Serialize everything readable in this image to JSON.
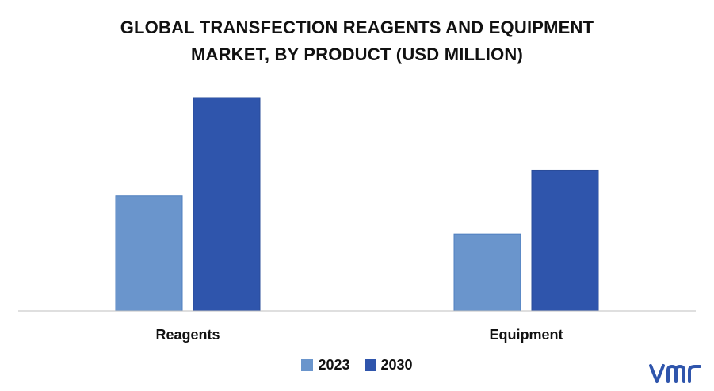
{
  "title_lines": [
    "GLOBAL TRANSFECTION REAGENTS AND EQUIPMENT",
    "MARKET, BY PRODUCT (USD MILLION)"
  ],
  "colors": {
    "series_2023": "#6a95cc",
    "series_2030": "#2f55ac",
    "axis": "#bfbfbf"
  },
  "chart_data": {
    "type": "bar",
    "title": "GLOBAL TRANSFECTION REAGENTS AND EQUIPMENT MARKET, BY PRODUCT (USD MILLION)",
    "categories": [
      "Reagents",
      "Equipment"
    ],
    "series": [
      {
        "name": "2023",
        "values": [
          54,
          36
        ]
      },
      {
        "name": "2030",
        "values": [
          100,
          66
        ]
      }
    ],
    "xlabel": "",
    "ylabel": "",
    "ylim": [
      0,
      100
    ],
    "grid": false,
    "legend": "bottom-center"
  },
  "logo": {
    "text": "vmr"
  }
}
